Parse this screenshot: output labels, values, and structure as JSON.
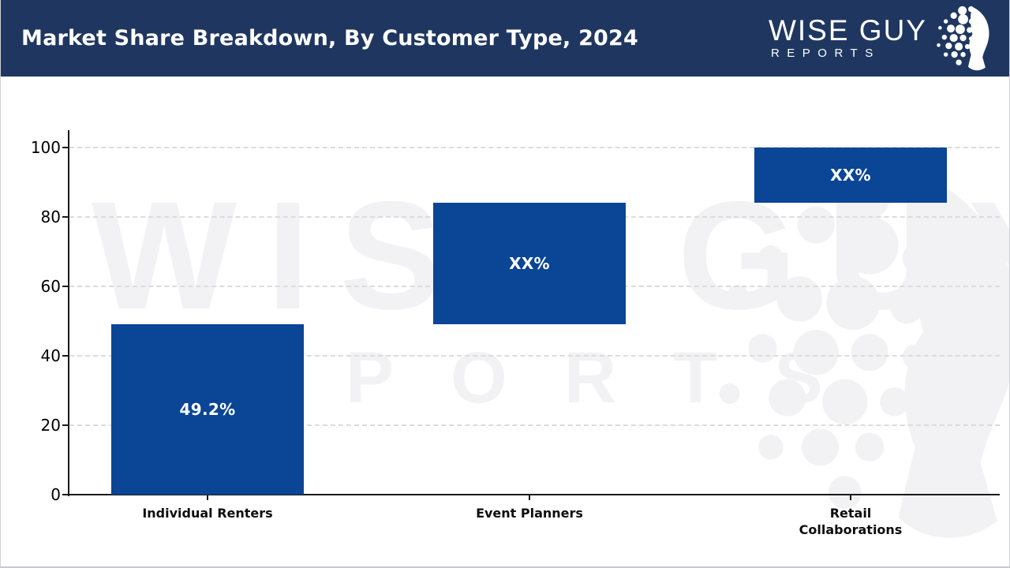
{
  "header": {
    "title": "Market Share Breakdown, By Customer Type, 2024",
    "logo": {
      "line1": "WISE GUY",
      "line2": "REPORTS"
    }
  },
  "watermark": {
    "line1": "WISE GUY",
    "line2": "REPORTS"
  },
  "chart_data": {
    "type": "bar",
    "subtype": "floating-waterfall",
    "title": "Market Share Breakdown, By Customer Type, 2024",
    "categories": [
      "Individual Renters",
      "Event Planners",
      "Retail Collaborations"
    ],
    "x_tick_labels": [
      "Individual Renters",
      "Event Planners",
      "Retail\nCollaborations"
    ],
    "segments": [
      {
        "category": "Individual Renters",
        "from": 0,
        "to": 49.2,
        "label": "49.2%"
      },
      {
        "category": "Event Planners",
        "from": 49.2,
        "to": 84,
        "label": "XX%"
      },
      {
        "category": "Retail Collaborations",
        "from": 84,
        "to": 100,
        "label": "XX%"
      }
    ],
    "yticks": [
      0,
      20,
      40,
      60,
      80,
      100
    ],
    "ylim": [
      0,
      105
    ],
    "xlabel": "",
    "ylabel": "",
    "grid": "horizontal-dashed",
    "legend": "none",
    "bar_color": "#0a4596",
    "gridline_color": "#dcdcdc",
    "axis_color": "#1a1a1a",
    "header_color": "#1f3760",
    "value_label_color": "#ffffff"
  }
}
